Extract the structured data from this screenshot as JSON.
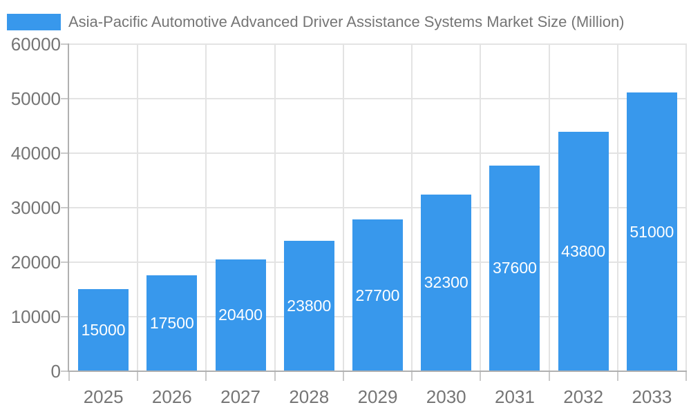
{
  "chart_data": {
    "type": "bar",
    "title": "Asia-Pacific Automotive Advanced Driver Assistance Systems Market Size (Million)",
    "categories": [
      "2025",
      "2026",
      "2027",
      "2028",
      "2029",
      "2030",
      "2031",
      "2032",
      "2033"
    ],
    "values": [
      15000,
      17500,
      20400,
      23800,
      27700,
      32300,
      37600,
      43800,
      51000
    ],
    "value_labels": [
      "15000",
      "17500",
      "20400",
      "23800",
      "27700",
      "32300",
      "37600",
      "43800",
      "51000"
    ],
    "xlabel": "",
    "ylabel": "",
    "ylim": [
      0,
      60000
    ],
    "yticks": [
      0,
      10000,
      20000,
      30000,
      40000,
      50000,
      60000
    ],
    "ytick_labels": [
      "0",
      "10000",
      "20000",
      "30000",
      "40000",
      "50000",
      "60000"
    ],
    "grid": true,
    "legend_position": "top-left",
    "value_label_position": "inside-center",
    "colors": {
      "bar": "#3898EC",
      "bar_label": "#ffffff",
      "axis_text": "#757575",
      "grid_line": "#e3e3e3",
      "axis_line": "#b0b0b0",
      "tick": "#c9c9c9",
      "background": "#ffffff"
    }
  }
}
